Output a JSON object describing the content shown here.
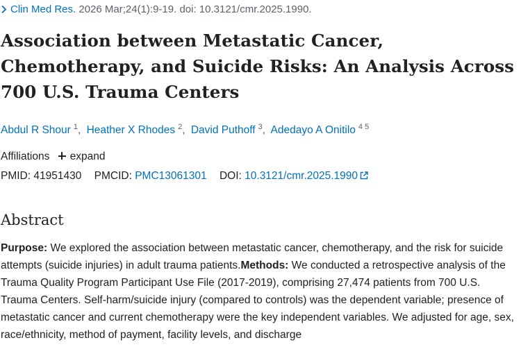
{
  "citation": {
    "journal": "Clin Med Res.",
    "details": "2026 Mar;24(1):9-19. doi: 10.3121/cmr.2025.1990."
  },
  "title": "Association between Metastatic Cancer, Chemotherapy, and Suicide Risks: An Analysis Across 700 U.S. Trauma Centers",
  "authors": [
    {
      "name": "Abdul R Shour",
      "aff": "1"
    },
    {
      "name": "Heather X Rhodes",
      "aff": "2"
    },
    {
      "name": "David Puthoff",
      "aff": "3"
    },
    {
      "name": "Adedayo A Onitilo",
      "aff": "4 5"
    }
  ],
  "affiliations": {
    "label": "Affiliations",
    "expand_label": "expand"
  },
  "identifiers": {
    "pmid_label": "PMID:",
    "pmid": "41951430",
    "pmcid_label": "PMCID:",
    "pmcid": "PMC13061301",
    "doi_label": "DOI:",
    "doi": "10.3121/cmr.2025.1990"
  },
  "abstract": {
    "heading": "Abstract",
    "purpose_label": "Purpose:",
    "purpose_text": " We explored the association between metastatic cancer, chemotherapy, and the risk for suicide attempts (suicide injuries) in adult trauma patients.",
    "methods_label": "Methods:",
    "methods_text": " We conducted a retrospective analysis of the Trauma Quality Program Participant Use File (2017-2019), comprising 27,474 patients from 700 U.S. Trauma Centers. Self-harm/suicide injury (compared to controls) was the dependent variable; presence of metastatic cancer and current chemotherapy were the key independent variables. We adjusted for age, sex, race/ethnicity, method of payment, facility levels, and discharge"
  },
  "icons": {
    "citation_chevron": "chevron-right-icon",
    "affiliations_expand": "plus-icon",
    "doi_external": "external-link-icon"
  },
  "colors": {
    "link": "#0071bc",
    "text": "#212121",
    "muted": "#5b616b"
  }
}
